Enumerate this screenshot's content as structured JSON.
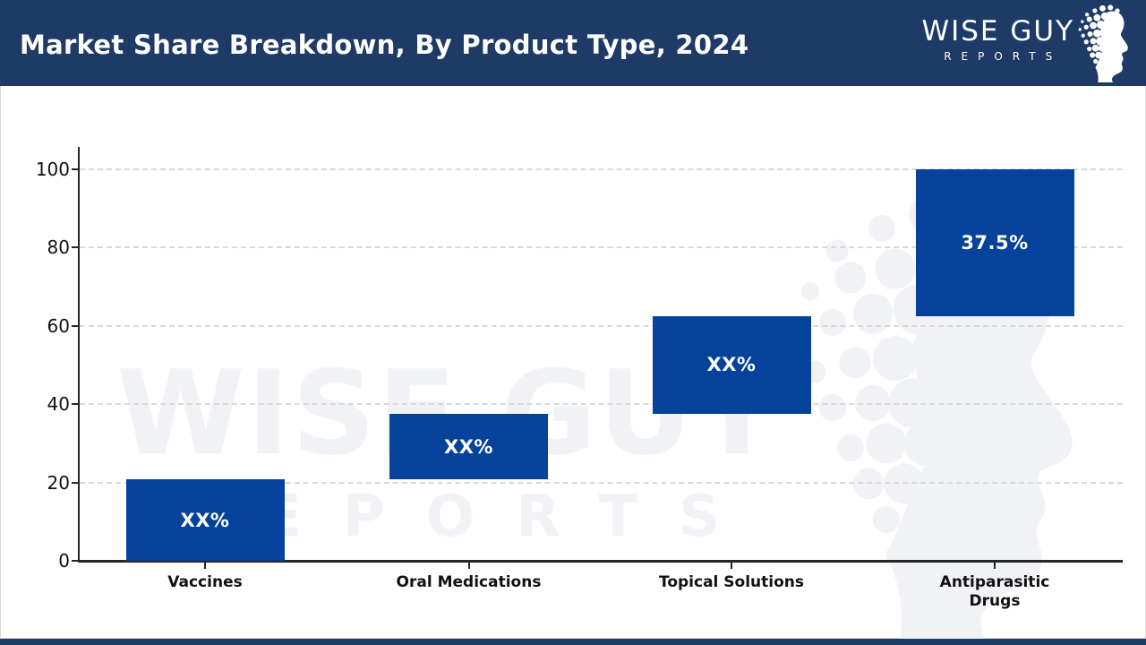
{
  "header": {
    "title": "Market Share Breakdown, By Product Type, 2024",
    "brand": {
      "line1": "WISE GUY",
      "line2": "REPORTS"
    }
  },
  "watermark": {
    "line1": "WISE GUY",
    "line2": "REPORTS"
  },
  "chart_data": {
    "type": "bar",
    "subtype": "floating-segment-waterfall",
    "title": "Market Share Breakdown, By Product Type, 2024",
    "categories": [
      "Vaccines",
      "Oral Medications",
      "Topical Solutions",
      "Antiparasitic\nDrugs"
    ],
    "bars": [
      {
        "category": "Vaccines",
        "start": 0,
        "end": 20.8,
        "label": "XX%"
      },
      {
        "category": "Oral Medications",
        "start": 20.8,
        "end": 37.5,
        "label": "XX%"
      },
      {
        "category": "Topical Solutions",
        "start": 37.5,
        "end": 62.5,
        "label": "XX%"
      },
      {
        "category": "Antiparasitic Drugs",
        "start": 62.5,
        "end": 100,
        "label": "37.5%"
      }
    ],
    "xlabel": "",
    "ylabel": "",
    "ylim": [
      0,
      100
    ],
    "yticks": [
      0,
      20,
      40,
      60,
      80,
      100
    ],
    "grid": "horizontal-dashed",
    "legend": "none",
    "bar_color": "#05429b",
    "bar_label_color": "#ffffff"
  },
  "colors": {
    "header_bg": "#1e3a66",
    "footer_bg": "#1e3a66",
    "title_text": "#ffffff",
    "bar": "#05429b",
    "grid_line": "#d9d9d9",
    "axis": "#262626",
    "tick_label": "#111111",
    "watermark": "#f1f2f5"
  }
}
